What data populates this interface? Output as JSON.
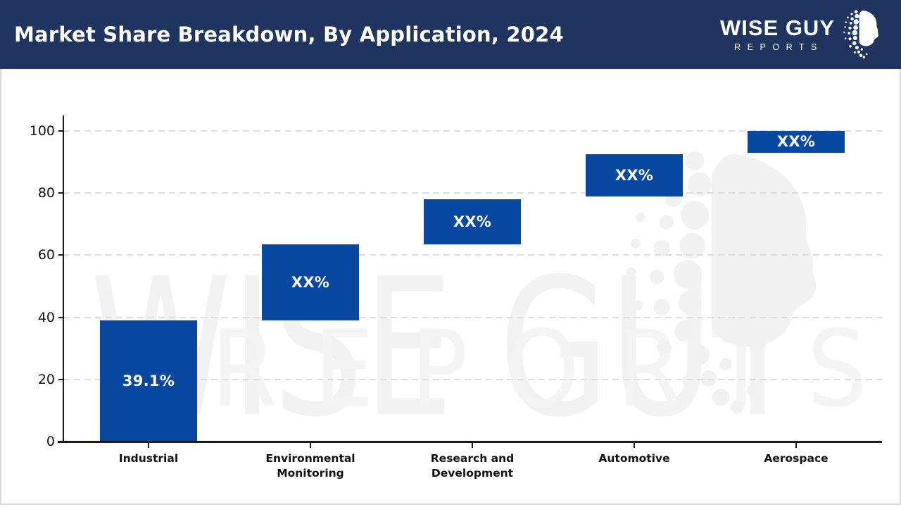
{
  "header": {
    "title": "Market Share Breakdown, By Application, 2024",
    "logo": {
      "line1": "WISE GUY",
      "line2": "REPORTS"
    }
  },
  "watermark": {
    "line1": "WISE GUY",
    "line2": "REPORTS"
  },
  "colors": {
    "header_bg": "#1f3560",
    "bar": "#0848a0",
    "axis": "#1a1a1a",
    "grid": "#dcdcdc",
    "bar_label": "#ffffff",
    "tick_label": "#111111",
    "watermark": "#f2f2f2",
    "frame_border": "#d9d9d9",
    "title_text": "#ffffff"
  },
  "chart_data": {
    "type": "bar",
    "subtype": "waterfall-floating-bars",
    "title": "Market Share Breakdown, By Application, 2024",
    "xlabel": "",
    "ylabel": "",
    "ylim": [
      0,
      100
    ],
    "yticks": [
      0,
      20,
      40,
      60,
      80,
      100
    ],
    "grid": true,
    "legend": "none",
    "categories": [
      "Industrial",
      "Environmental Monitoring",
      "Research and Development",
      "Automotive",
      "Aerospace"
    ],
    "bars": [
      {
        "category": "Industrial",
        "label_lines": [
          "Industrial"
        ],
        "start": 0,
        "end": 39.1,
        "value_label": "39.1%"
      },
      {
        "category": "Environmental Monitoring",
        "label_lines": [
          "Environmental",
          "Monitoring"
        ],
        "start": 39.1,
        "end": 63.5,
        "value_label": "XX%"
      },
      {
        "category": "Research and Development",
        "label_lines": [
          "Research and",
          "Development"
        ],
        "start": 63.5,
        "end": 78.0,
        "value_label": "XX%"
      },
      {
        "category": "Automotive",
        "label_lines": [
          "Automotive"
        ],
        "start": 79.0,
        "end": 92.6,
        "value_label": "XX%"
      },
      {
        "category": "Aerospace",
        "label_lines": [
          "Aerospace"
        ],
        "start": 93.0,
        "end": 100.0,
        "value_label": "XX%"
      }
    ]
  }
}
